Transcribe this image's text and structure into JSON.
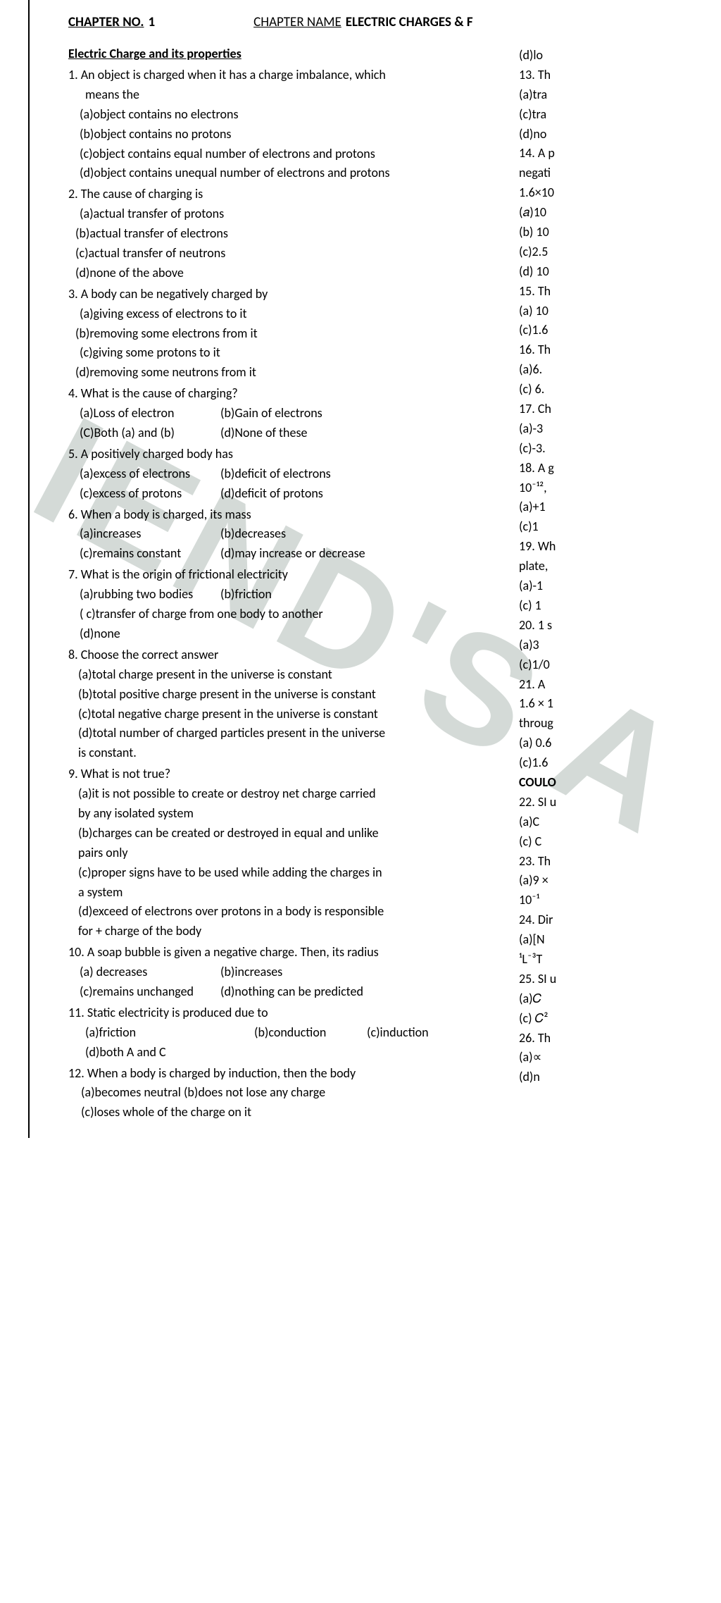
{
  "header": {
    "chapter_no_label": "CHAPTER NO.",
    "chapter_no": "1",
    "chapter_name_label": "CHAPTER NAME",
    "chapter_name": "ELECTRIC CHARGES & F"
  },
  "section_title": "Electric Charge and its properties",
  "watermark": "IEND'S A",
  "left": {
    "q1": {
      "text": "1. An object is charged when it has a charge imbalance, which",
      "cont": "means the",
      "a": "(a)object contains no electrons",
      "b": "(b)object contains no protons",
      "c": "(c)object contains equal number of electrons and protons",
      "d": "(d)object contains unequal number of electrons and protons"
    },
    "q2": {
      "text": "2. The cause of charging is",
      "a": "(a)actual transfer of protons",
      "b": "(b)actual transfer of electrons",
      "c": "(c)actual transfer of neutrons",
      "d": "(d)none of the above"
    },
    "q3": {
      "text": "3.  A body can be negatively charged by",
      "a": "(a)giving excess of electrons to it",
      "b": "(b)removing some electrons from it",
      "c": "(c)giving some protons to it",
      "d": "(d)removing some neutrons from it"
    },
    "q4": {
      "text": "4.  What is the cause of charging?",
      "a": "(a)Loss of electron",
      "b": "(b)Gain of electrons",
      "c": "(C)Both (a) and (b)",
      "d": "(d)None of these"
    },
    "q5": {
      "text": "5. A positively charged body has",
      "a": "(a)excess of electrons",
      "b": "(b)deficit of electrons",
      "c": "(c)excess of protons",
      "d": "(d)deficit of protons"
    },
    "q6": {
      "text": "6. When a body is charged, its mass",
      "a": "(a)increases",
      "b": "(b)decreases",
      "c": "(c)remains constant",
      "d": "(d)may increase or decrease"
    },
    "q7": {
      "text": "7.  What is the origin of frictional electricity",
      "a": "(a)rubbing two bodies",
      "b": "(b)friction",
      "c": "( c)transfer of charge from one body to another",
      "d": "(d)none"
    },
    "q8": {
      "text": "8.  Choose the correct answer",
      "a": "(a)total charge present in the universe is constant",
      "b": "(b)total positive charge present in the universe is constant",
      "c": "(c)total negative charge present in the universe is   constant",
      "d": "(d)total number of charged particles present in the universe",
      "dcont": "is constant."
    },
    "q9": {
      "text": "9. What is not true?",
      "a": "(a)it is not possible to create or destroy net charge carried",
      "acont": "by any isolated system",
      "b": "(b)charges can be created or destroyed in equal and unlike",
      "bcont": "pairs only",
      "c": "(c)proper signs have to be used while adding the charges in",
      "ccont": "a system",
      "d": "(d)exceed of electrons over protons in a body is responsible",
      "dcont": "for + charge of the body"
    },
    "q10": {
      "text": "10.  A soap bubble is given a negative charge. Then, its radius",
      "a": "(a) decreases",
      "b": "(b)increases",
      "c": "(c)remains unchanged",
      "d": "(d)nothing can be predicted"
    },
    "q11": {
      "text": "11.  Static electricity is produced due to",
      "a": "(a)friction",
      "b": "(b)conduction",
      "c": "(c)induction",
      "d": "(d)both A and C"
    },
    "q12": {
      "text": "12. When a body is charged by induction, then the body",
      "a": "(a)becomes neutral (b)does not lose any charge",
      "c": "(c)loses whole of the charge on it"
    }
  },
  "right": {
    "lines": [
      "(d)lo",
      "13. Th",
      "(a)tra",
      "(c)tra",
      "(d)no",
      "14. A p",
      "negati",
      "1.6×10",
      "(𝑎)10",
      "(b) 10",
      "(c)2.5",
      "(d) 10",
      "15. Th",
      "(a) 10",
      "(c)1.6",
      "16. Th",
      "(a)6.",
      "(c) 6.",
      "17. Ch",
      "(a)-3",
      "(c)-3.",
      "18. A g",
      "10⁻¹²,",
      "(a)+1",
      "(c)1",
      "19. Wh",
      "plate,",
      "(a)-1",
      "(c) 1",
      "20. 1 s",
      "(a)3",
      "(c)1/0",
      "21.  A",
      "1.6 × 1",
      "throug",
      "(a) 0.6",
      "(c)1.6",
      "COULO",
      "22. SI u",
      "(a)C",
      "(c) C",
      "23. Th",
      "(a)9 ×",
      "10⁻¹",
      "24. Dir",
      "(a)[N",
      "¹L⁻³T",
      "25. SI u",
      "(a)𝐶",
      "(c) 𝐶²",
      "26. Th",
      "(a)∝",
      "(d)n"
    ]
  }
}
